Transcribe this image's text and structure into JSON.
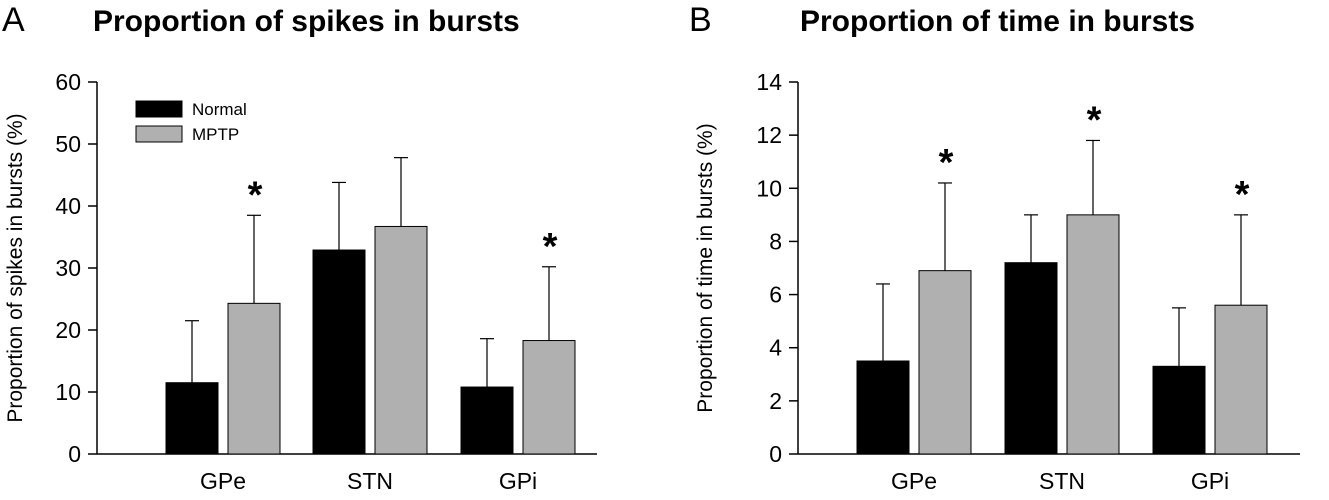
{
  "colors": {
    "normal": "#000000",
    "mptp": "#b0b0b0",
    "axis": "#000000"
  },
  "chart_data": [
    {
      "type": "bar",
      "panel": "A",
      "title": "Proportion of spikes in bursts",
      "ylabel": "Proportion of spikes in bursts (%)",
      "ylim": [
        0,
        60
      ],
      "yticks": [
        0,
        10,
        20,
        30,
        40,
        50,
        60
      ],
      "categories": [
        "GPe",
        "STN",
        "GPi"
      ],
      "legend": {
        "position": "top-left"
      },
      "series": [
        {
          "name": "Normal",
          "values": [
            11.5,
            32.9,
            10.8
          ],
          "errors": [
            10.0,
            10.9,
            7.8
          ]
        },
        {
          "name": "MPTP",
          "values": [
            24.3,
            36.7,
            18.3
          ],
          "errors": [
            14.2,
            11.1,
            11.9
          ]
        }
      ],
      "significance": [
        "*",
        "",
        "*"
      ]
    },
    {
      "type": "bar",
      "panel": "B",
      "title": "Proportion of time in bursts",
      "ylabel": "Proportion of time in bursts (%)",
      "ylim": [
        0,
        14
      ],
      "yticks": [
        0,
        2,
        4,
        6,
        8,
        10,
        12,
        14
      ],
      "categories": [
        "GPe",
        "STN",
        "GPi"
      ],
      "series": [
        {
          "name": "Normal",
          "values": [
            3.5,
            7.2,
            3.3
          ],
          "errors": [
            2.9,
            1.8,
            2.2
          ]
        },
        {
          "name": "MPTP",
          "values": [
            6.9,
            9.0,
            5.6
          ],
          "errors": [
            3.3,
            2.8,
            3.4
          ]
        }
      ],
      "significance": [
        "*",
        "*",
        "*"
      ]
    }
  ]
}
